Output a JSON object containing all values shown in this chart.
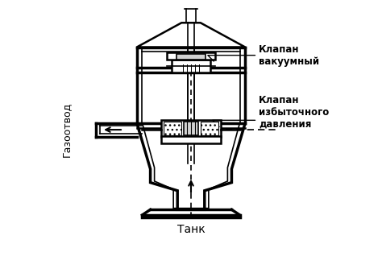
{
  "title": "",
  "background_color": "#ffffff",
  "line_color": "#000000",
  "label_gazootvod": "Газоотвод",
  "label_tank": "Танк",
  "label_vacuum_valve": "Клапан\nвакуумный",
  "label_excess_valve": "Клапан\nизбыточного\nдавления",
  "fig_width": 4.74,
  "fig_height": 3.39,
  "dpi": 100
}
